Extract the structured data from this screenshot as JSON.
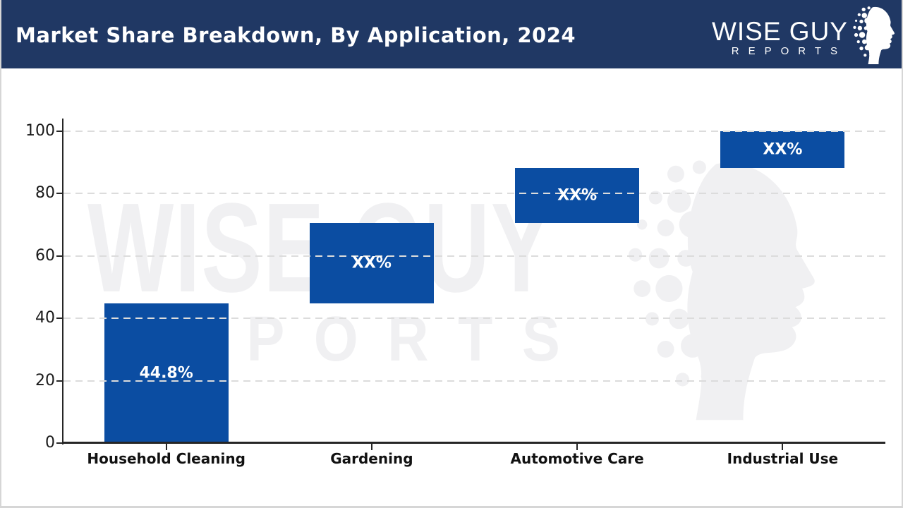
{
  "header": {
    "title": "Market Share Breakdown, By Application, 2024",
    "bg_color": "#203864",
    "logo": {
      "line1": "WISE GUY",
      "line2": "REPORTS",
      "icon": "dotted-head-profile"
    }
  },
  "watermark": {
    "line1": "WISE GUY",
    "line2": "REPORTS",
    "color": "#f0f0f2"
  },
  "chart_data": {
    "type": "bar",
    "variant": "floating-segment-waterfall",
    "title": "Market Share Breakdown, By Application, 2024",
    "categories": [
      "Household Cleaning",
      "Gardening",
      "Automotive Care",
      "Industrial Use"
    ],
    "bars": [
      {
        "category": "Household Cleaning",
        "start": 0,
        "end": 44.8,
        "label": "44.8%"
      },
      {
        "category": "Gardening",
        "start": 44.8,
        "end": 70.6,
        "label": "XX%"
      },
      {
        "category": "Automotive Care",
        "start": 70.6,
        "end": 88.2,
        "label": "XX%"
      },
      {
        "category": "Industrial Use",
        "start": 88.2,
        "end": 100,
        "label": "XX%"
      }
    ],
    "xlabel": "",
    "ylabel": "",
    "ylim": [
      0,
      100
    ],
    "yticks": [
      0,
      20,
      40,
      60,
      80,
      100
    ],
    "grid": "horizontal dashed",
    "legend": "none",
    "bar_color": "#0b4da2",
    "bar_label_color": "#ffffff",
    "axis_color": "#262626"
  }
}
